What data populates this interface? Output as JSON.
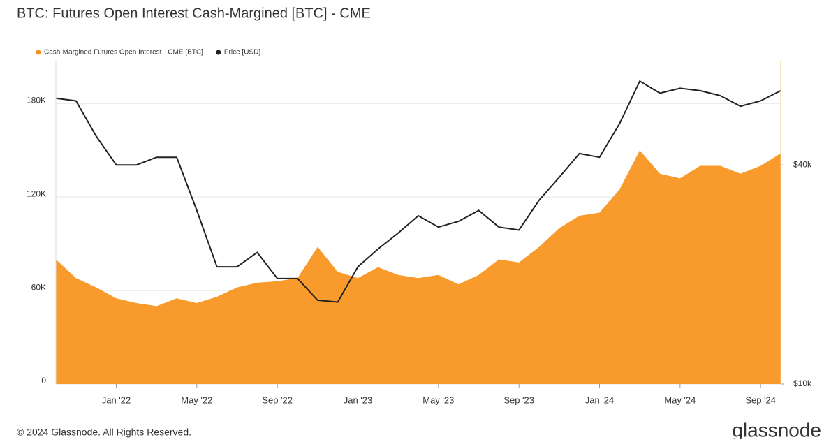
{
  "chart_data": {
    "type": "area-line",
    "title": "BTC: Futures Open Interest Cash-Margined [BTC] - CME",
    "source": "© 2024 Glassnode. All Rights Reserved.",
    "logo": "glassnode",
    "x": [
      "2021-10",
      "2021-11",
      "2021-12",
      "2022-01",
      "2022-02",
      "2022-03",
      "2022-04",
      "2022-05",
      "2022-06",
      "2022-07",
      "2022-08",
      "2022-09",
      "2022-10",
      "2022-11",
      "2022-12",
      "2023-01",
      "2023-02",
      "2023-03",
      "2023-04",
      "2023-05",
      "2023-06",
      "2023-07",
      "2023-08",
      "2023-09",
      "2023-10",
      "2023-11",
      "2023-12",
      "2024-01",
      "2024-02",
      "2024-03",
      "2024-04",
      "2024-05",
      "2024-06",
      "2024-07",
      "2024-08",
      "2024-09",
      "2024-10"
    ],
    "xlim": [
      "2021-10",
      "2024-10"
    ],
    "xticks": [
      {
        "value": "2022-01",
        "label": "Jan '22"
      },
      {
        "value": "2022-05",
        "label": "May '22"
      },
      {
        "value": "2022-09",
        "label": "Sep '22"
      },
      {
        "value": "2023-01",
        "label": "Jan '23"
      },
      {
        "value": "2023-05",
        "label": "May '23"
      },
      {
        "value": "2023-09",
        "label": "Sep '23"
      },
      {
        "value": "2024-01",
        "label": "Jan '24"
      },
      {
        "value": "2024-05",
        "label": "May '24"
      },
      {
        "value": "2024-09",
        "label": "Sep '24"
      }
    ],
    "ylim": [
      0,
      207000
    ],
    "yticks": [
      0,
      {
        "value": 60000,
        "label": "60K"
      },
      {
        "value": 120000,
        "label": "120K"
      },
      {
        "value": 180000,
        "label": "180K"
      }
    ],
    "y2lim": [
      10000,
      77000
    ],
    "y2scale": "log",
    "y2ticks": [
      {
        "value": 10000,
        "label": "$10k"
      },
      {
        "value": 40000,
        "label": "$40k"
      }
    ],
    "grid": true,
    "legend": "top-left",
    "series": [
      {
        "name": "Cash-Margined Futures Open Interest - CME [BTC]",
        "color": "#f7931a",
        "kind": "area",
        "values": [
          80000,
          68000,
          62000,
          55000,
          52000,
          50000,
          55000,
          52000,
          56000,
          62000,
          65000,
          66000,
          68000,
          88000,
          72000,
          68000,
          75000,
          70000,
          68000,
          70000,
          64000,
          70000,
          80000,
          78000,
          88000,
          100000,
          108000,
          110000,
          125000,
          150000,
          135000,
          132000,
          140000,
          140000,
          135000,
          140000,
          148000
        ]
      },
      {
        "name": "Price [USD]",
        "color": "#222222",
        "kind": "line",
        "axis": "y2",
        "values": [
          61000,
          60000,
          48000,
          40000,
          40000,
          42000,
          42000,
          30000,
          21000,
          21000,
          23000,
          19500,
          19500,
          17000,
          16800,
          21000,
          23500,
          26000,
          29000,
          27000,
          28000,
          30000,
          27000,
          26500,
          32000,
          37000,
          43000,
          42000,
          52000,
          68000,
          63000,
          65000,
          64000,
          62000,
          58000,
          60000,
          64000
        ]
      }
    ]
  }
}
